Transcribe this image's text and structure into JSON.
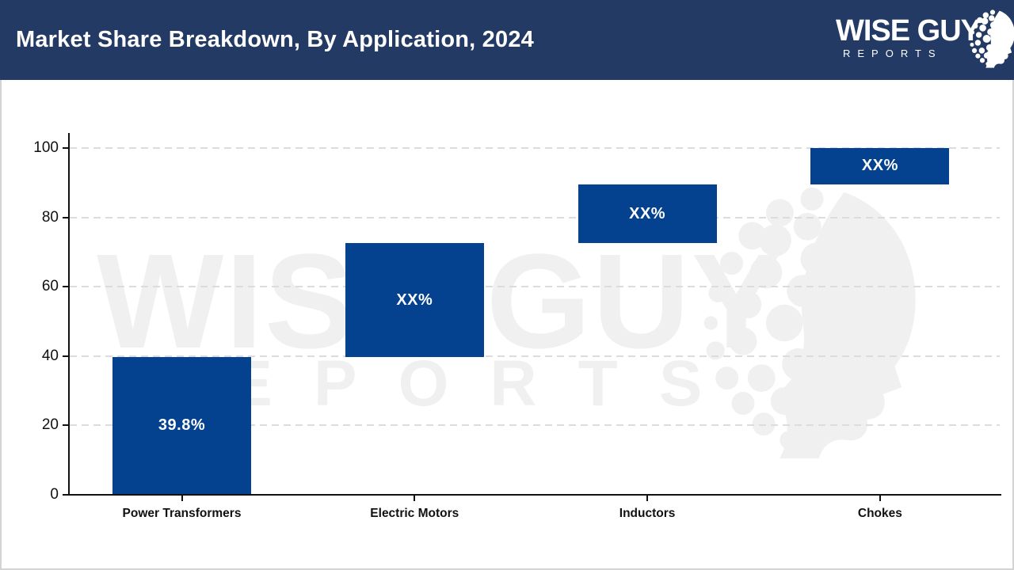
{
  "header": {
    "title": "Market Share Breakdown, By Application, 2024",
    "logo": {
      "wordmark": "WISE GUY",
      "subtext": "REPORTS"
    }
  },
  "watermark": {
    "line1": "WISE GUY",
    "line2": "REPORTS"
  },
  "chart_data": {
    "type": "bar",
    "subtype": "waterfall",
    "title": "Market Share Breakdown, By Application, 2024",
    "categories": [
      "Power Transformers",
      "Electric Motors",
      "Inductors",
      "Chokes"
    ],
    "segments": [
      {
        "category": "Power Transformers",
        "start": 0,
        "end": 39.8,
        "label": "39.8%"
      },
      {
        "category": "Electric Motors",
        "start": 39.8,
        "end": 72.5,
        "label": "XX%"
      },
      {
        "category": "Inductors",
        "start": 72.5,
        "end": 89.5,
        "label": "XX%"
      },
      {
        "category": "Chokes",
        "start": 89.5,
        "end": 100,
        "label": "XX%"
      }
    ],
    "xlabel": "",
    "ylabel": "",
    "ylim": [
      0,
      100
    ],
    "yticks": [
      0,
      20,
      40,
      60,
      80,
      100
    ],
    "grid": true,
    "grid_style": "dashed",
    "legend": false,
    "bar_color": "#04428F"
  },
  "colors": {
    "header_bg": "#223A64",
    "bar": "#04428F",
    "grid": "#DCDCDC",
    "axis": "#111111",
    "watermark": "#F0F0F0",
    "frame_border": "#D4D4D4",
    "title_text": "#FFFFFF"
  }
}
